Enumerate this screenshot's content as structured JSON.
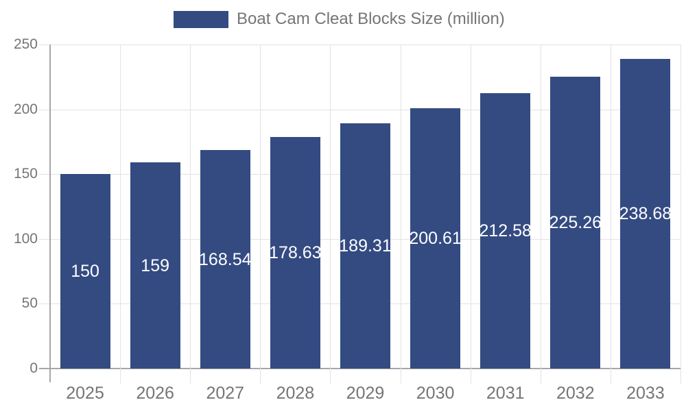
{
  "legend": {
    "label": "Boat Cam Cleat Blocks Size (million)"
  },
  "colors": {
    "bar": "#344b82",
    "grid": "#e2e2e2",
    "axis": "#a6a6a6",
    "tick_text": "#757575",
    "value_text": "#ffffff",
    "background": "#ffffff"
  },
  "chart_data": {
    "type": "bar",
    "title": "Boat Cam Cleat Blocks Size (million)",
    "categories": [
      "2025",
      "2026",
      "2027",
      "2028",
      "2029",
      "2030",
      "2031",
      "2032",
      "2033"
    ],
    "values": [
      150,
      159,
      168.54,
      178.63,
      189.31,
      200.61,
      212.58,
      225.26,
      238.68
    ],
    "value_labels": [
      "150",
      "159",
      "168.54",
      "178.63",
      "189.31",
      "200.61",
      "212.58",
      "225.26",
      "238.68"
    ],
    "xlabel": "",
    "ylabel": "",
    "ylim": [
      0,
      250
    ],
    "yticks": [
      0,
      50,
      100,
      150,
      200,
      250
    ],
    "ytick_labels": [
      "0",
      "50",
      "100",
      "150",
      "200",
      "250"
    ],
    "grid": true,
    "legend_position": "top-center",
    "value_label_position": "inside-center"
  }
}
